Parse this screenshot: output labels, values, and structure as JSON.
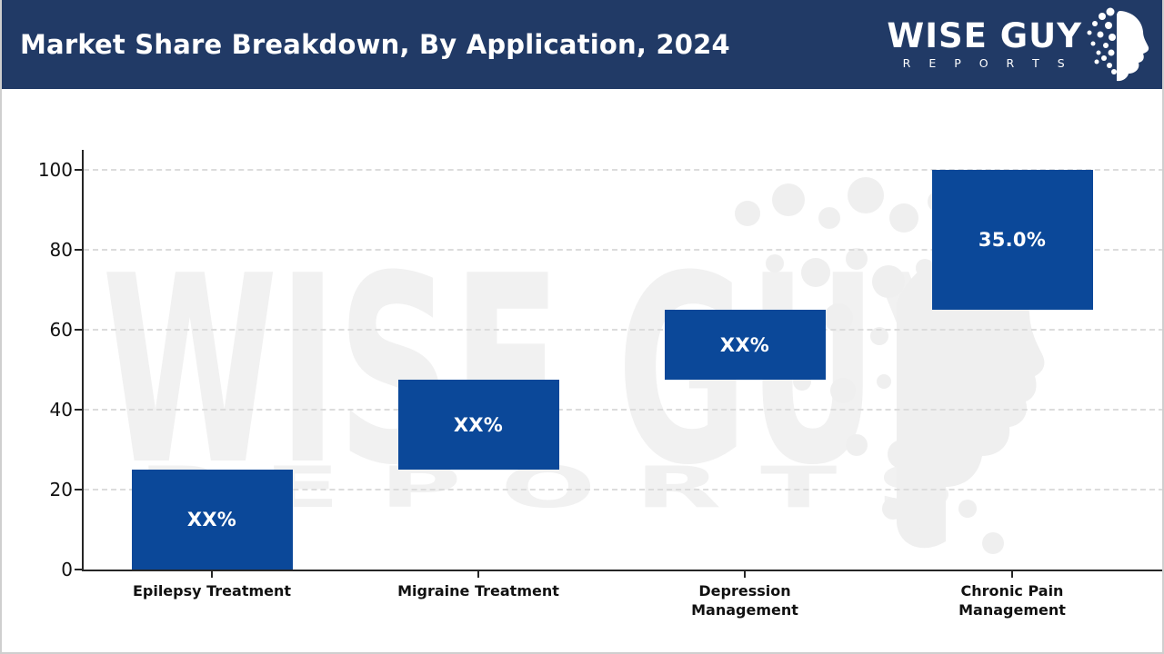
{
  "header": {
    "title": "Market Share Breakdown, By Application, 2024",
    "logo": {
      "brand_line1": "WISE GUY",
      "brand_line2": "R E P O R T S"
    }
  },
  "watermark": {
    "brand_line1": "WISE GUY",
    "brand_line2": "R E P O R T S"
  },
  "colors": {
    "header_bg": "#213a66",
    "bar": "#0b4899",
    "bar_label": "#ffffff",
    "axis": "#262626",
    "gridline": "#dcdcdc",
    "watermark": "#f0f0f0"
  },
  "chart_data": {
    "type": "bar",
    "subtype": "floating-waterfall",
    "title": "Market Share Breakdown, By Application, 2024",
    "categories": [
      "Epilepsy Treatment",
      "Migraine Treatment",
      "Depression Management",
      "Chronic Pain Management"
    ],
    "x_tick_labels": [
      "Epilepsy Treatment",
      "Migraine Treatment",
      "Depression\nManagement",
      "Chronic Pain\nManagement"
    ],
    "segments": [
      {
        "category": "Epilepsy Treatment",
        "start": 0,
        "end": 25,
        "label": "XX%"
      },
      {
        "category": "Migraine Treatment",
        "start": 25,
        "end": 47.5,
        "label": "XX%"
      },
      {
        "category": "Depression Management",
        "start": 47.5,
        "end": 65,
        "label": "XX%"
      },
      {
        "category": "Chronic Pain Management",
        "start": 65,
        "end": 100,
        "label": "35.0%"
      }
    ],
    "xlabel": "",
    "ylabel": "",
    "ylim": [
      0,
      100
    ],
    "yticks": [
      0,
      20,
      40,
      60,
      80,
      100
    ],
    "grid": "horizontal-dashed",
    "legend": null
  }
}
